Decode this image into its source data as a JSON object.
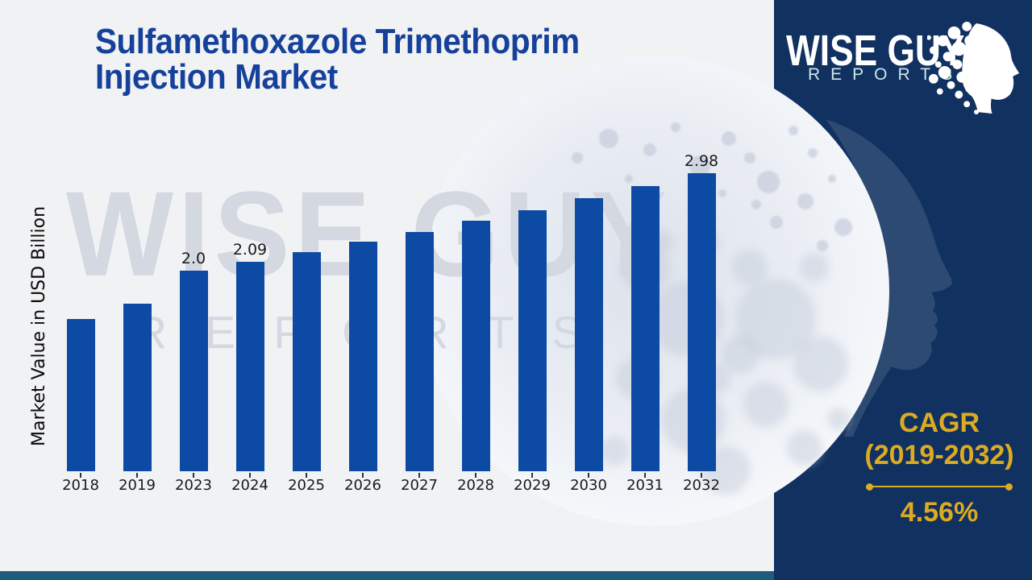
{
  "page": {
    "background_color": "#f1f2f4",
    "bottom_bar_color": "#1e5c7a",
    "panel_color": "#113161"
  },
  "title_lines": [
    "Sulfamethoxazole Trimethoprim",
    "Injection Market"
  ],
  "title_color": "#15419b",
  "logo": {
    "brand": "WISE GUY",
    "sub": "REPORTS",
    "brand_color": "#ffffff",
    "sub_color": "#cbe7ea",
    "head_icon": "wiseguy-head-icon"
  },
  "watermark": {
    "line1": "WISE GUY",
    "line2": "REPORTS",
    "color": "#d3d8e1"
  },
  "cagr": {
    "label": "CAGR",
    "period": "(2019-2032)",
    "value": "4.56%",
    "accent_color": "#dcab21"
  },
  "chart_data": {
    "type": "bar",
    "title": "",
    "xlabel": "",
    "ylabel": "Market Value in USD Billion",
    "unit": "USD Billion",
    "categories": [
      "2018",
      "2019",
      "2023",
      "2024",
      "2025",
      "2026",
      "2027",
      "2028",
      "2029",
      "2030",
      "2031",
      "2032"
    ],
    "values": [
      1.52,
      1.67,
      2.0,
      2.09,
      2.19,
      2.29,
      2.39,
      2.5,
      2.61,
      2.73,
      2.85,
      2.98
    ],
    "bar_labels": [
      "",
      "",
      "2.0",
      "2.09",
      "",
      "",
      "",
      "",
      "",
      "",
      "",
      "2.98"
    ],
    "bar_color": "#0d4aa3",
    "label_color": "#1a1a1a",
    "grid": false,
    "y_axis_ticks_visible": false,
    "ylim": [
      0,
      3.2
    ]
  }
}
